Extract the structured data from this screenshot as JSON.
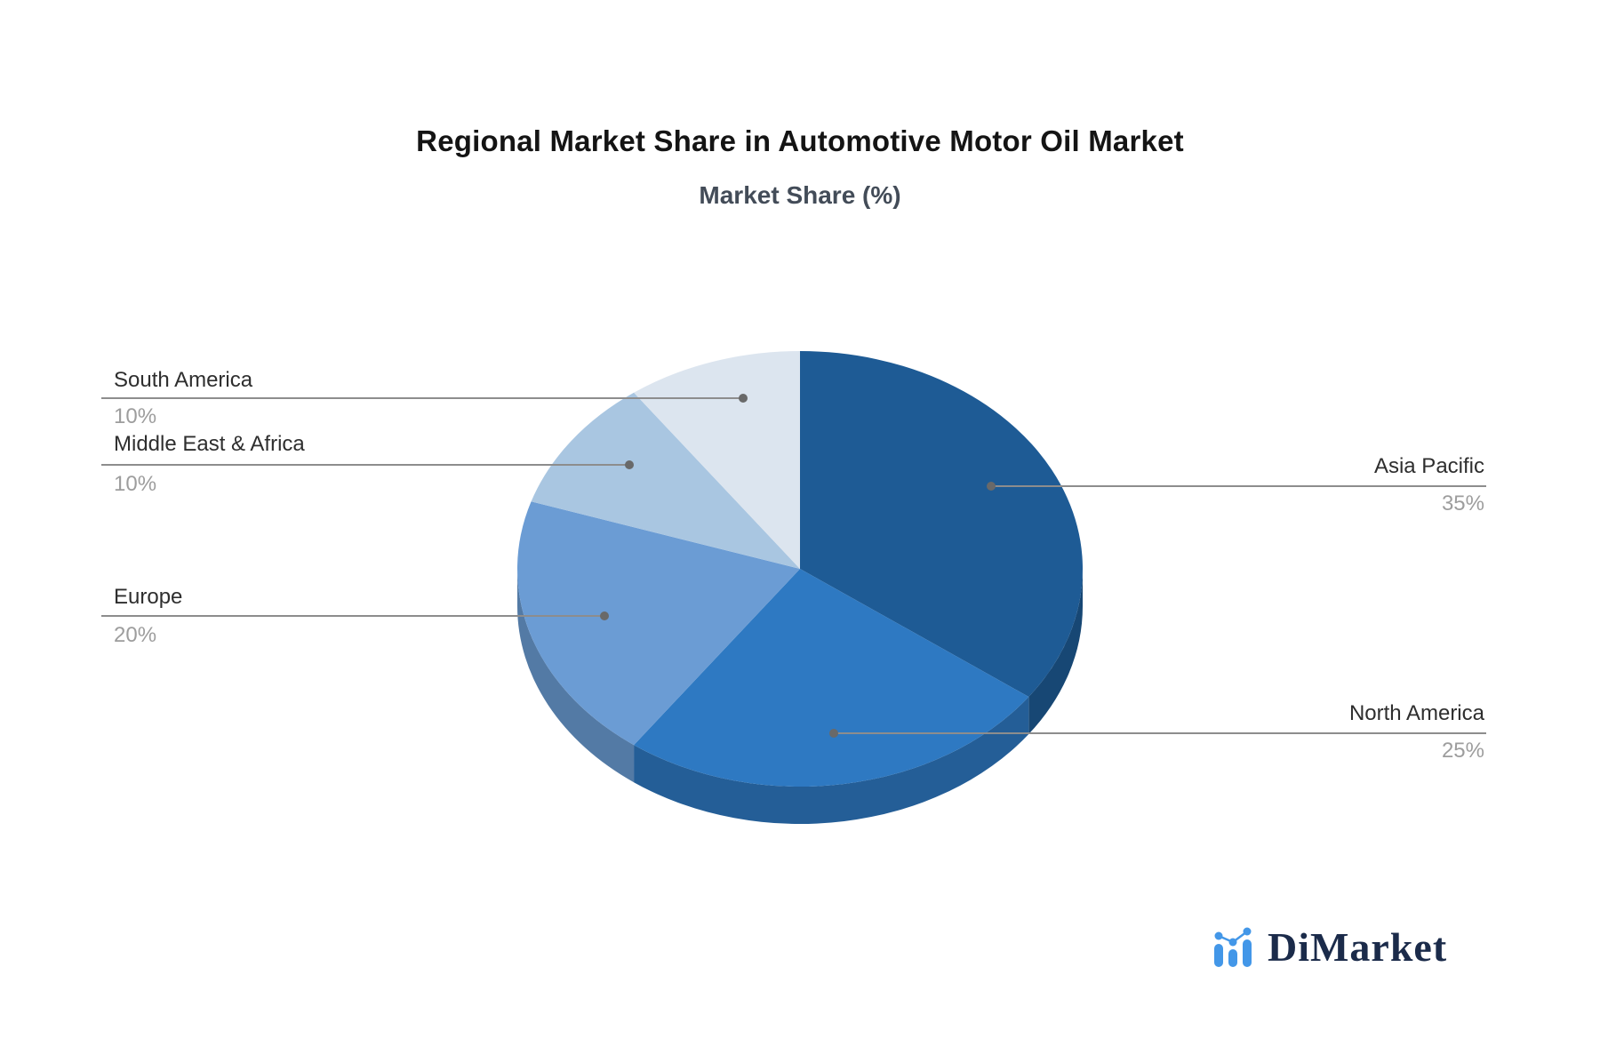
{
  "title": "Regional Market Share in Automotive Motor Oil Market",
  "subtitle": "Market Share (%)",
  "logo": {
    "text": "DiMarket",
    "icon": "bar-chart-logo-icon"
  },
  "chart_data": {
    "type": "pie",
    "style": "pie-3d",
    "title": "Regional Market Share in Automotive Motor Oil Market",
    "subtitle": "Market Share (%)",
    "unit": "%",
    "rotation": "clockwise-from-top",
    "start_angle_deg": 0,
    "legend_position": "none",
    "leader_line_color": "#8d8d8d",
    "leader_dot_color": "#696969",
    "label_color": "#2e2e2e",
    "pct_color": "#9d9d9d",
    "slices": [
      {
        "label": "Asia Pacific",
        "value": 35,
        "pct_label": "35%",
        "color": "#1E5B95",
        "label_side": "right"
      },
      {
        "label": "North America",
        "value": 25,
        "pct_label": "25%",
        "color": "#2E79C2",
        "label_side": "right"
      },
      {
        "label": "Europe",
        "value": 20,
        "pct_label": "20%",
        "color": "#6B9CD4",
        "label_side": "left"
      },
      {
        "label": "Middle East & Africa",
        "value": 10,
        "pct_label": "10%",
        "color": "#A9C6E1",
        "label_side": "left"
      },
      {
        "label": "South America",
        "value": 10,
        "pct_label": "10%",
        "color": "#DCE5EF",
        "label_side": "left"
      }
    ]
  }
}
